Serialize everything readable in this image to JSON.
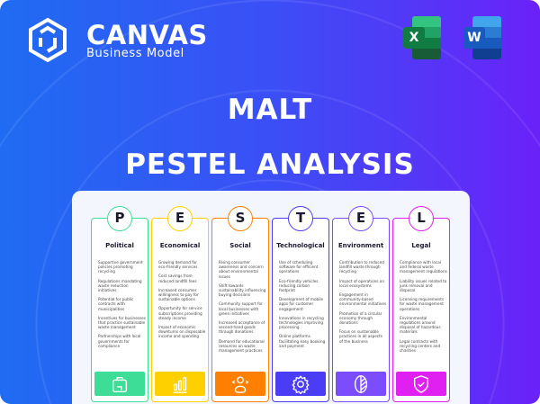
{
  "brand": {
    "name": "CANVAS",
    "subtitle": "Business Model"
  },
  "apps": [
    {
      "icon": "excel-icon",
      "letter": "X"
    },
    {
      "icon": "word-icon",
      "letter": "W"
    }
  ],
  "title": {
    "line1": "MALT",
    "line2": "PESTEL ANALYSIS"
  },
  "columns": [
    {
      "letter": "P",
      "title": "Political",
      "color": "#3ddc97",
      "icon": "briefcase-icon",
      "items": [
        "Supportive government policies promoting recycling",
        "Regulations mandating waste reduction initiatives",
        "Potential for public contracts with municipalities",
        "Incentives for businesses that practice sustainable waste management",
        "Partnerships with local governments for compliance"
      ]
    },
    {
      "letter": "E",
      "title": "Economical",
      "color": "#ffd000",
      "icon": "bar-chart-icon",
      "items": [
        "Growing demand for eco-friendly services",
        "Cost savings from reduced landfill fees",
        "Increased consumer willingness to pay for sustainable options",
        "Opportunity for service subscriptions providing steady income",
        "Impact of economic downturns on disposable income and spending"
      ]
    },
    {
      "letter": "S",
      "title": "Social",
      "color": "#ff8000",
      "icon": "people-icon",
      "items": [
        "Rising consumer awareness and concern about environmental issues",
        "Shift towards sustainability influencing buying decisions",
        "Community support for local businesses with green initiatives",
        "Increased acceptance of second-hand goods through donations",
        "Demand for educational resources on waste management practices"
      ]
    },
    {
      "letter": "T",
      "title": "Technological",
      "color": "#4b3df5",
      "icon": "gear-icon",
      "items": [
        "Use of scheduling software for efficient operations",
        "Eco-friendly vehicles reducing carbon footprint",
        "Development of mobile apps for customer engagement",
        "Innovations in recycling technologies improving processing",
        "Online platforms facilitating easy booking and payment"
      ]
    },
    {
      "letter": "E",
      "title": "Environment",
      "color": "#7b4dff",
      "icon": "leaf-icon",
      "items": [
        "Contribution to reduced landfill waste through recycling",
        "Impact of operations on local ecosystems",
        "Engagement in community-based environmental initiatives",
        "Promotion of a circular economy through donations",
        "Focus on sustainable practices in all aspects of the business"
      ]
    },
    {
      "letter": "L",
      "title": "Legal",
      "color": "#e020f0",
      "icon": "shield-check-icon",
      "items": [
        "Compliance with local and federal waste management regulations",
        "Liability issues related to junk removal and disposal",
        "Licensing requirements for waste management operations",
        "Environmental regulations around disposal of hazardous materials",
        "Legal contracts with recycling centers and charities"
      ]
    }
  ]
}
